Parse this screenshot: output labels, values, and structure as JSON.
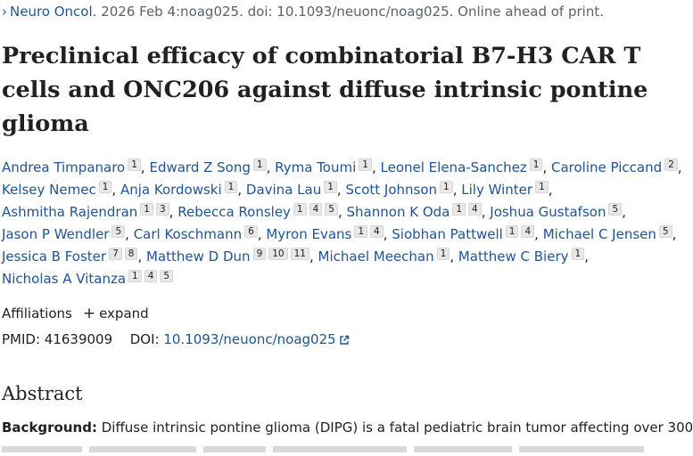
{
  "citation": {
    "journal": "Neuro Oncol",
    "rest": ". 2026 Feb 4:noag025. doi: 10.1093/neuonc/noag025. Online ahead of print."
  },
  "title": "Preclinical efficacy of combinatorial B7-H3 CAR T cells and ONC206 against diffuse intrinsic pontine glioma",
  "authors": [
    {
      "name": "Andrea Timpanaro",
      "affs": [
        "1"
      ]
    },
    {
      "name": "Edward Z Song",
      "affs": [
        "1"
      ]
    },
    {
      "name": "Ryma Toumi",
      "affs": [
        "1"
      ]
    },
    {
      "name": "Leonel Elena-Sanchez",
      "affs": [
        "1"
      ]
    },
    {
      "name": "Caroline Piccand",
      "affs": [
        "2"
      ]
    },
    {
      "name": "Kelsey Nemec",
      "affs": [
        "1"
      ]
    },
    {
      "name": "Anja Kordowski",
      "affs": [
        "1"
      ]
    },
    {
      "name": "Davina Lau",
      "affs": [
        "1"
      ]
    },
    {
      "name": "Scott Johnson",
      "affs": [
        "1"
      ]
    },
    {
      "name": "Lily Winter",
      "affs": [
        "1"
      ]
    },
    {
      "name": "Ashmitha Rajendran",
      "affs": [
        "1",
        "3"
      ]
    },
    {
      "name": "Rebecca Ronsley",
      "affs": [
        "1",
        "4",
        "5"
      ]
    },
    {
      "name": "Shannon K Oda",
      "affs": [
        "1",
        "4"
      ]
    },
    {
      "name": "Joshua Gustafson",
      "affs": [
        "5"
      ]
    },
    {
      "name": "Jason P Wendler",
      "affs": [
        "5"
      ]
    },
    {
      "name": "Carl Koschmann",
      "affs": [
        "6"
      ]
    },
    {
      "name": "Myron Evans",
      "affs": [
        "1",
        "4"
      ]
    },
    {
      "name": "Siobhan Pattwell",
      "affs": [
        "1",
        "4"
      ]
    },
    {
      "name": "Michael C Jensen",
      "affs": [
        "5"
      ]
    },
    {
      "name": "Jessica B Foster",
      "affs": [
        "7",
        "8"
      ]
    },
    {
      "name": "Matthew D Dun",
      "affs": [
        "9",
        "10",
        "11"
      ]
    },
    {
      "name": "Michael Meechan",
      "affs": [
        "1"
      ]
    },
    {
      "name": "Matthew C Biery",
      "affs": [
        "1"
      ]
    },
    {
      "name": "Nicholas A Vitanza",
      "affs": [
        "1",
        "4",
        "5"
      ]
    }
  ],
  "affiliations": {
    "label": "Affiliations",
    "expand_icon": "plus-icon",
    "expand_label": "expand"
  },
  "ids": {
    "pmid_label": "PMID:",
    "pmid": "41639009",
    "doi_label": "DOI:",
    "doi": "10.1093/neuonc/noag025",
    "doi_icon": "external-link-icon"
  },
  "abstract": {
    "heading": "Abstract",
    "background_label": "Background:",
    "background_text": " Diffuse intrinsic pontine glioma (DIPG) is a fatal pediatric brain tumor affecting over 300"
  },
  "colors": {
    "link": "#205493",
    "text": "#212121",
    "muted": "#5b616b",
    "badge_bg": "#e8e8e8"
  }
}
